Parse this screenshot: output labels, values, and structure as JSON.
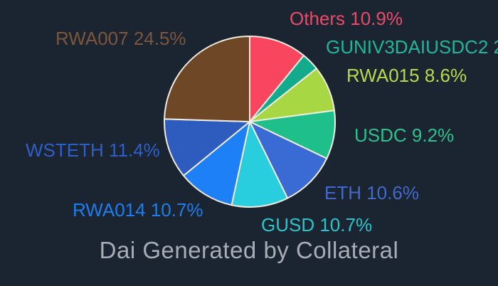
{
  "colors": {
    "background": "#1b2531",
    "slice_stroke": "#f1ebe0",
    "title": "#a8adb6"
  },
  "chart_data": {
    "type": "pie",
    "title": "Dai Generated by Collateral",
    "legend_position": "around-labels",
    "start_angle_deg": 0,
    "direction": "clockwise",
    "slices": [
      {
        "name": "Others",
        "label": "Others 10.9%",
        "value": 10.9,
        "color": "#f8465f",
        "label_color": "#ea4a68"
      },
      {
        "name": "GUNIV3DAIUSDC2",
        "label": "GUNIV3DAIUSDC2 2",
        "value": 3.4,
        "color": "#14ab8d",
        "label_color": "#20b699"
      },
      {
        "name": "RWA015",
        "label": "RWA015 8.6%",
        "value": 8.6,
        "color": "#a7d843",
        "label_color": "#b5da4a"
      },
      {
        "name": "USDC",
        "label": "USDC 9.2%",
        "value": 9.2,
        "color": "#1fbf8b",
        "label_color": "#2cc18e"
      },
      {
        "name": "ETH",
        "label": "ETH 10.6%",
        "value": 10.6,
        "color": "#3a6ad3",
        "label_color": "#4169cd"
      },
      {
        "name": "GUSD",
        "label": "GUSD 10.7%",
        "value": 10.7,
        "color": "#28cdde",
        "label_color": "#26c6cd"
      },
      {
        "name": "RWA014",
        "label": "RWA014 10.7%",
        "value": 10.7,
        "color": "#1e80f6",
        "label_color": "#1d7ded"
      },
      {
        "name": "WSTETH",
        "label": "WSTETH 11.4%",
        "value": 11.4,
        "color": "#2d5cbe",
        "label_color": "#2e5fc9"
      },
      {
        "name": "RWA007",
        "label": "RWA007 24.5%",
        "value": 24.5,
        "color": "#6e4726",
        "label_color": "#7d553b"
      }
    ]
  }
}
